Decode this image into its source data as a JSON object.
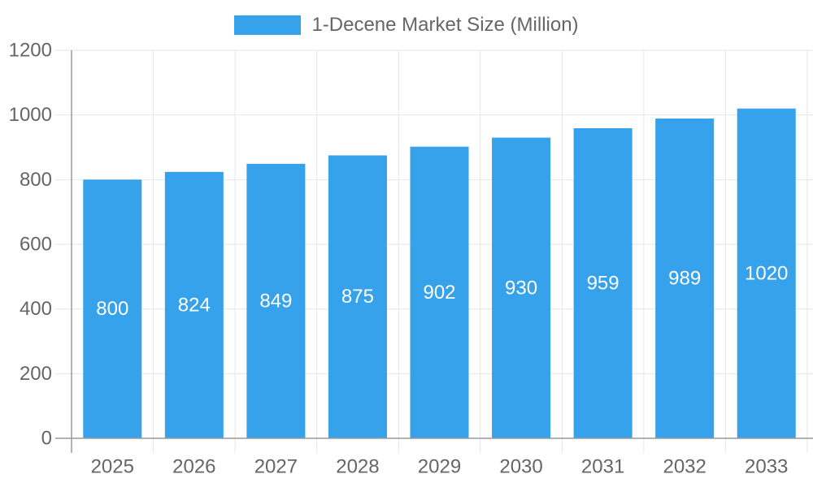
{
  "legend": {
    "label": "1-Decene Market Size (Million)"
  },
  "chart_data": {
    "type": "bar",
    "title": "1-Decene Market Size (Million)",
    "categories": [
      "2025",
      "2026",
      "2027",
      "2028",
      "2029",
      "2030",
      "2031",
      "2032",
      "2033"
    ],
    "values": [
      800,
      824,
      849,
      875,
      902,
      930,
      959,
      989,
      1020
    ],
    "xlabel": "",
    "ylabel": "",
    "ylim": [
      0,
      1200
    ],
    "yticks": [
      0,
      200,
      400,
      600,
      800,
      1000,
      1200
    ],
    "grid": true,
    "legend_position": "top",
    "bar_value_labels": true,
    "colors": {
      "bar": "#36A2EB",
      "grid": "#E6E6E6",
      "axis": "#999999",
      "tick_text": "#666666",
      "bar_label_text": "#FFFFFF"
    }
  }
}
